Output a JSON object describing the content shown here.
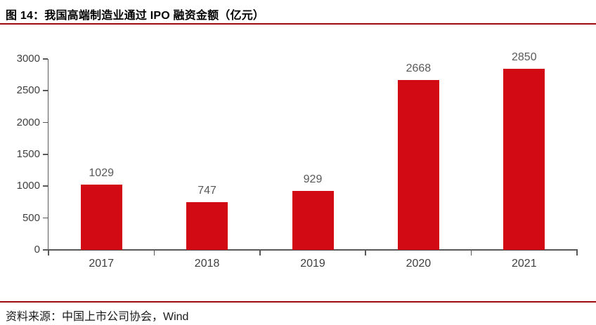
{
  "figure": {
    "title": "图 14：我国高端制造业通过 IPO 融资金额（亿元）",
    "source": "资料来源：中国上市公司协会，Wind"
  },
  "colors": {
    "background": "#ffffff",
    "bar": "#d20a13",
    "rule": "#9e0b0f",
    "axis": "#595959",
    "tick_label": "#3f3f3f",
    "data_label": "#595959"
  },
  "chart_data": {
    "type": "bar",
    "title": "我国高端制造业通过 IPO 融资金额（亿元）",
    "categories": [
      "2017",
      "2018",
      "2019",
      "2020",
      "2021"
    ],
    "values": [
      1029,
      747,
      929,
      2668,
      2850
    ],
    "data_labels": [
      1029,
      747,
      929,
      2668,
      2850
    ],
    "xlabel": "",
    "ylabel": "",
    "ylim": [
      0,
      3000
    ],
    "yticks": [
      0,
      500,
      1000,
      1500,
      2000,
      2500,
      3000
    ],
    "ytick_step": 500,
    "grid": false,
    "legend": "none",
    "bar_color": "#d20a13",
    "value_labels_shown": true
  }
}
